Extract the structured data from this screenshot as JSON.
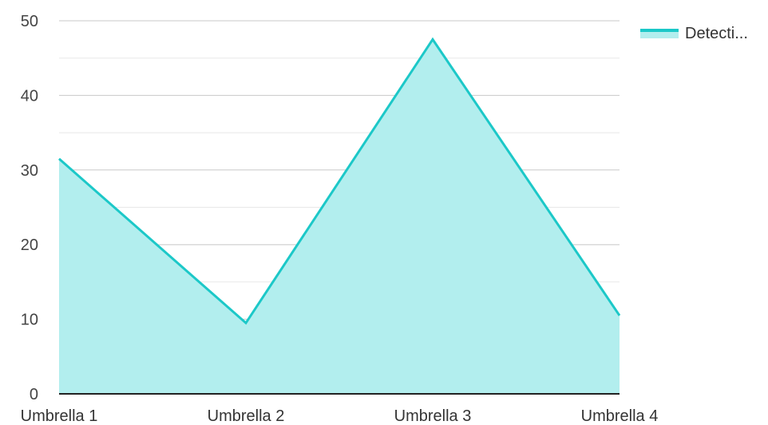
{
  "chart_data": {
    "type": "area",
    "categories": [
      "Umbrella 1",
      "Umbrella 2",
      "Umbrella 3",
      "Umbrella 4"
    ],
    "series": [
      {
        "name": "Detecti...",
        "values": [
          31.5,
          9.5,
          47.5,
          10.5
        ]
      }
    ],
    "ylim": [
      0,
      50
    ],
    "yticks": [
      0,
      10,
      20,
      30,
      40,
      50
    ],
    "grid": true,
    "legend_position": "top-right",
    "colors": {
      "line": "#1cc8c8",
      "fill": "#b2eeee",
      "grid": "#c8c8c8",
      "minor_grid": "#e8e8e8",
      "axis": "#222222"
    }
  }
}
